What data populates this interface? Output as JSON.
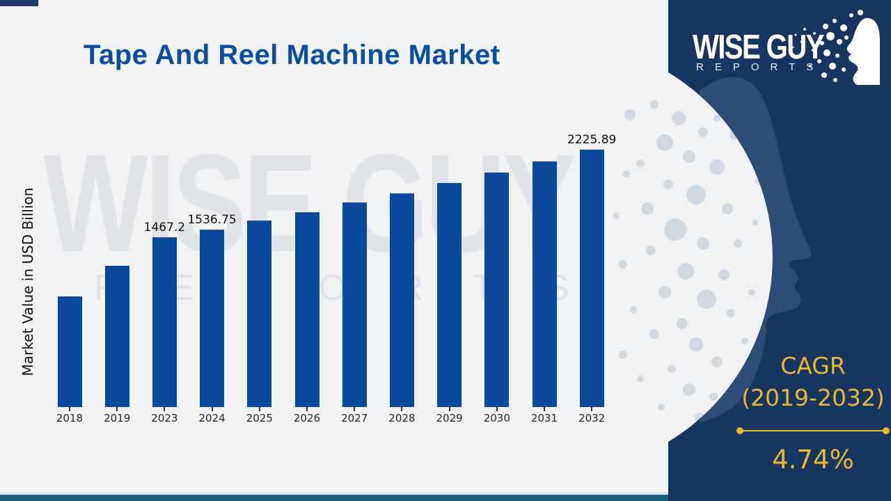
{
  "header": {
    "title": "Tape And Reel Machine Market"
  },
  "chart_data": {
    "type": "bar",
    "title": "Tape And Reel Machine Market",
    "categories": [
      "2018",
      "2019",
      "2023",
      "2024",
      "2025",
      "2026",
      "2027",
      "2028",
      "2029",
      "2030",
      "2031",
      "2032"
    ],
    "values": [
      957,
      1219.1,
      1467.2,
      1536.75,
      1609.6,
      1685.9,
      1765.8,
      1849.5,
      1937.1,
      2028.9,
      2125.1,
      2225.89
    ],
    "data_labels": [
      "",
      "",
      "1467.2",
      "1536.75",
      "",
      "",
      "",
      "",
      "",
      "",
      "",
      "2225.89"
    ],
    "xlabel": "",
    "ylabel": "Market Value in USD Billion",
    "ylim": [
      0,
      2350
    ],
    "grid": false,
    "legend": "none",
    "bar_color": "#0a4a9c"
  },
  "watermark": {
    "line1": "WISE GUY",
    "line2": "REPORTS"
  },
  "logo": {
    "line1": "WISE GUY",
    "line2": "REPORTS"
  },
  "cagr": {
    "heading": "CAGR",
    "range": "(2019-2032)",
    "value": "4.74%"
  },
  "colors": {
    "background": "#f1f2f3",
    "bar_blue": "#0a4a9c",
    "title_blue": "#0d4da1",
    "panel_navy": "#16355f",
    "face_silhouette": "#2d4c78",
    "gold": "#e9b830",
    "teal_strip": "#19607e",
    "watermark_gray": "#e0e3e8"
  }
}
